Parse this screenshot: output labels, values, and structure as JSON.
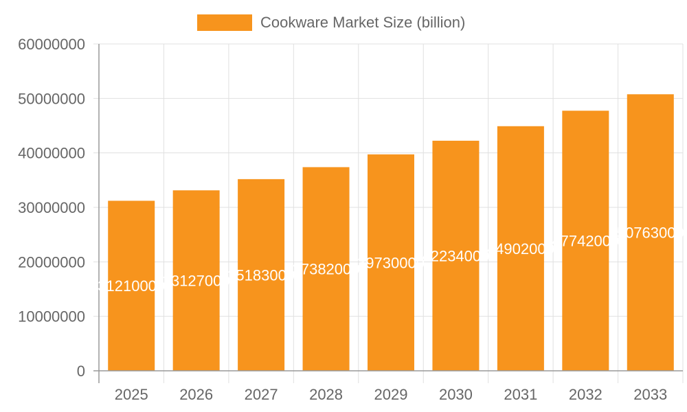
{
  "legend": {
    "label": "Cookware Market Size (billion)",
    "color": "#f7941d"
  },
  "colors": {
    "bar": "#f7941d",
    "grid": "#e0e0e0",
    "axis": "#999999",
    "tick_text": "#666666",
    "data_label": "#ffffff"
  },
  "chart_data": {
    "type": "bar",
    "title": "",
    "xlabel": "",
    "ylabel": "",
    "categories": [
      "2025",
      "2026",
      "2027",
      "2028",
      "2029",
      "2030",
      "2031",
      "2032",
      "2033"
    ],
    "series": [
      {
        "name": "Cookware Market Size (billion)",
        "values": [
          31210000,
          33127000,
          35183000,
          37382000,
          39730000,
          42234000,
          44902000,
          47742000,
          50763000
        ]
      }
    ],
    "data_labels": [
      "31210000",
      "33127000",
      "35183000",
      "37382000",
      "39730000",
      "42234000",
      "44902000",
      "47742000",
      "50763000"
    ],
    "ylim": [
      0,
      60000000
    ],
    "yticks": [
      0,
      10000000,
      20000000,
      30000000,
      40000000,
      50000000,
      60000000
    ],
    "grid": true,
    "legend_position": "top"
  }
}
